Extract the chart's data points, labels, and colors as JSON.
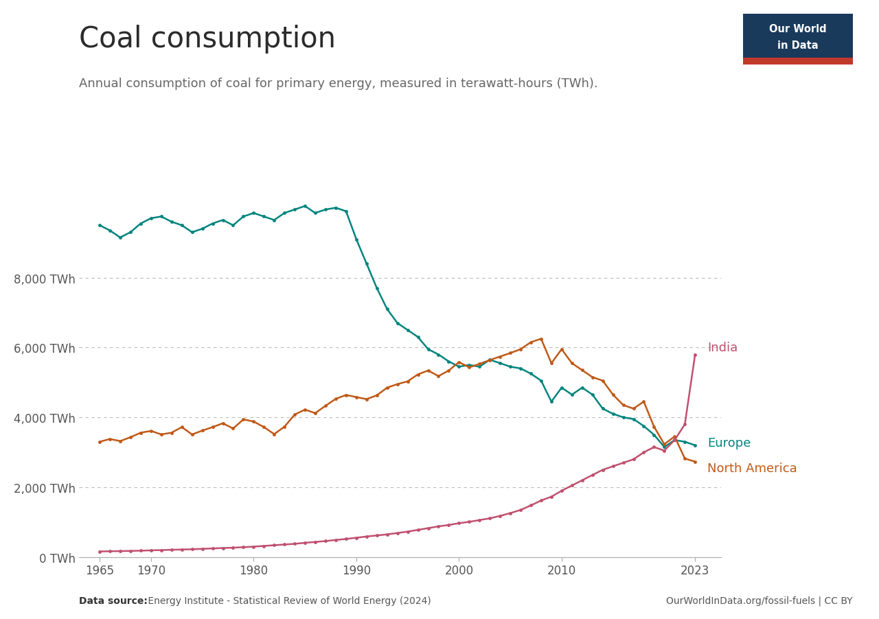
{
  "title": "Coal consumption",
  "subtitle": "Annual consumption of coal for primary energy, measured in terawatt-hours (TWh).",
  "source_left_bold": "Data source:",
  "source_left_normal": " Energy Institute - Statistical Review of World Energy (2024)",
  "source_right": "OurWorldInData.org/fossil-fuels | CC BY",
  "logo_text1": "Our World",
  "logo_text2": "in Data",
  "background_color": "#ffffff",
  "europe": {
    "color": "#00847e",
    "label": "Europe",
    "years": [
      1965,
      1966,
      1967,
      1968,
      1969,
      1970,
      1971,
      1972,
      1973,
      1974,
      1975,
      1976,
      1977,
      1978,
      1979,
      1980,
      1981,
      1982,
      1983,
      1984,
      1985,
      1986,
      1987,
      1988,
      1989,
      1990,
      1991,
      1992,
      1993,
      1994,
      1995,
      1996,
      1997,
      1998,
      1999,
      2000,
      2001,
      2002,
      2003,
      2004,
      2005,
      2006,
      2007,
      2008,
      2009,
      2010,
      2011,
      2012,
      2013,
      2014,
      2015,
      2016,
      2017,
      2018,
      2019,
      2020,
      2021,
      2022,
      2023
    ],
    "values": [
      9500,
      9350,
      9150,
      9300,
      9550,
      9700,
      9750,
      9600,
      9500,
      9300,
      9400,
      9550,
      9650,
      9500,
      9750,
      9850,
      9750,
      9650,
      9850,
      9950,
      10050,
      9850,
      9950,
      10000,
      9900,
      9100,
      8400,
      7700,
      7100,
      6700,
      6500,
      6300,
      5950,
      5800,
      5600,
      5450,
      5500,
      5450,
      5650,
      5550,
      5450,
      5400,
      5250,
      5050,
      4450,
      4850,
      4650,
      4850,
      4650,
      4250,
      4100,
      4000,
      3950,
      3750,
      3500,
      3150,
      3350,
      3300,
      3200
    ]
  },
  "north_america": {
    "color": "#c05917",
    "label": "North America",
    "years": [
      1965,
      1966,
      1967,
      1968,
      1969,
      1970,
      1971,
      1972,
      1973,
      1974,
      1975,
      1976,
      1977,
      1978,
      1979,
      1980,
      1981,
      1982,
      1983,
      1984,
      1985,
      1986,
      1987,
      1988,
      1989,
      1990,
      1991,
      1992,
      1993,
      1994,
      1995,
      1996,
      1997,
      1998,
      1999,
      2000,
      2001,
      2002,
      2003,
      2004,
      2005,
      2006,
      2007,
      2008,
      2009,
      2010,
      2011,
      2012,
      2013,
      2014,
      2015,
      2016,
      2017,
      2018,
      2019,
      2020,
      2021,
      2022,
      2023
    ],
    "values": [
      3300,
      3380,
      3320,
      3430,
      3560,
      3610,
      3510,
      3560,
      3720,
      3510,
      3620,
      3720,
      3830,
      3680,
      3940,
      3880,
      3720,
      3520,
      3730,
      4080,
      4220,
      4120,
      4330,
      4530,
      4640,
      4580,
      4520,
      4630,
      4850,
      4950,
      5030,
      5230,
      5340,
      5180,
      5340,
      5580,
      5430,
      5530,
      5640,
      5740,
      5840,
      5950,
      6150,
      6250,
      5550,
      5950,
      5550,
      5350,
      5150,
      5050,
      4650,
      4350,
      4250,
      4450,
      3730,
      3230,
      3450,
      2820,
      2730
    ]
  },
  "india": {
    "color": "#c0506e",
    "label": "India",
    "years": [
      1965,
      1966,
      1967,
      1968,
      1969,
      1970,
      1971,
      1972,
      1973,
      1974,
      1975,
      1976,
      1977,
      1978,
      1979,
      1980,
      1981,
      1982,
      1983,
      1984,
      1985,
      1986,
      1987,
      1988,
      1989,
      1990,
      1991,
      1992,
      1993,
      1994,
      1995,
      1996,
      1997,
      1998,
      1999,
      2000,
      2001,
      2002,
      2003,
      2004,
      2005,
      2006,
      2007,
      2008,
      2009,
      2010,
      2011,
      2012,
      2013,
      2014,
      2015,
      2016,
      2017,
      2018,
      2019,
      2020,
      2021,
      2022,
      2023
    ],
    "values": [
      160,
      165,
      170,
      175,
      182,
      192,
      198,
      208,
      215,
      222,
      235,
      247,
      258,
      268,
      282,
      298,
      318,
      338,
      358,
      378,
      408,
      432,
      458,
      488,
      518,
      552,
      588,
      618,
      648,
      688,
      728,
      778,
      828,
      878,
      918,
      968,
      1008,
      1058,
      1108,
      1178,
      1258,
      1348,
      1478,
      1618,
      1728,
      1898,
      2048,
      2198,
      2348,
      2498,
      2598,
      2698,
      2798,
      2998,
      3148,
      3048,
      3348,
      3800,
      5800
    ]
  },
  "ylim": [
    0,
    11000
  ],
  "yticks": [
    0,
    2000,
    4000,
    6000,
    8000
  ],
  "ytick_labels": [
    "0 TWh",
    "2,000 TWh",
    "4,000 TWh",
    "6,000 TWh",
    "8,000 TWh"
  ],
  "xlim": [
    1963,
    2025.5
  ],
  "xticks_positions": [
    1965,
    1970,
    1980,
    1990,
    2000,
    2010,
    2023
  ],
  "xtick_labels": [
    "1965",
    "1970",
    "1980",
    "1990",
    "2000",
    "2010",
    "2023"
  ],
  "marker_size": 3.5,
  "line_width": 1.8,
  "title_fontsize": 30,
  "subtitle_fontsize": 13,
  "tick_fontsize": 12,
  "logo_bg_color": "#1a3a5c",
  "logo_red_color": "#c0392b"
}
